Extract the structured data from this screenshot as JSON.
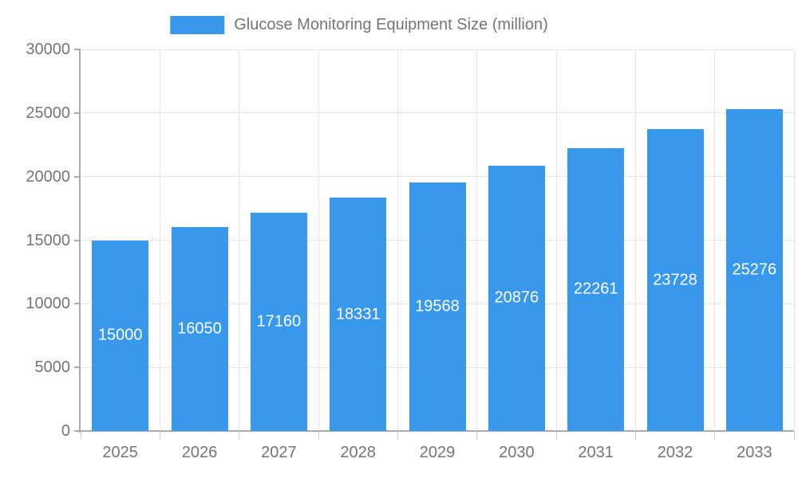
{
  "legend": {
    "label": "Glucose Monitoring Equipment Size (million)"
  },
  "chart_data": {
    "type": "bar",
    "title": "Glucose Monitoring Equipment Size (million)",
    "categories": [
      "2025",
      "2026",
      "2027",
      "2028",
      "2029",
      "2030",
      "2031",
      "2032",
      "2033"
    ],
    "series": [
      {
        "name": "Glucose Monitoring Equipment Size (million)",
        "values": [
          15000,
          16050,
          17160,
          18331,
          19568,
          20876,
          22261,
          23728,
          25276
        ]
      }
    ],
    "value_labels": [
      "15000",
      "16050",
      "17160",
      "18331",
      "19568",
      "20876",
      "22261",
      "23728",
      "25276"
    ],
    "xlabel": "",
    "ylabel": "",
    "ylim": [
      0,
      30000
    ],
    "yticks": [
      0,
      5000,
      10000,
      15000,
      20000,
      25000,
      30000
    ],
    "grid": true,
    "legend_position": "top-center",
    "colors": {
      "bar": "#3898EC",
      "value_label": "#FFFFFF",
      "axis_text": "#757575"
    }
  }
}
